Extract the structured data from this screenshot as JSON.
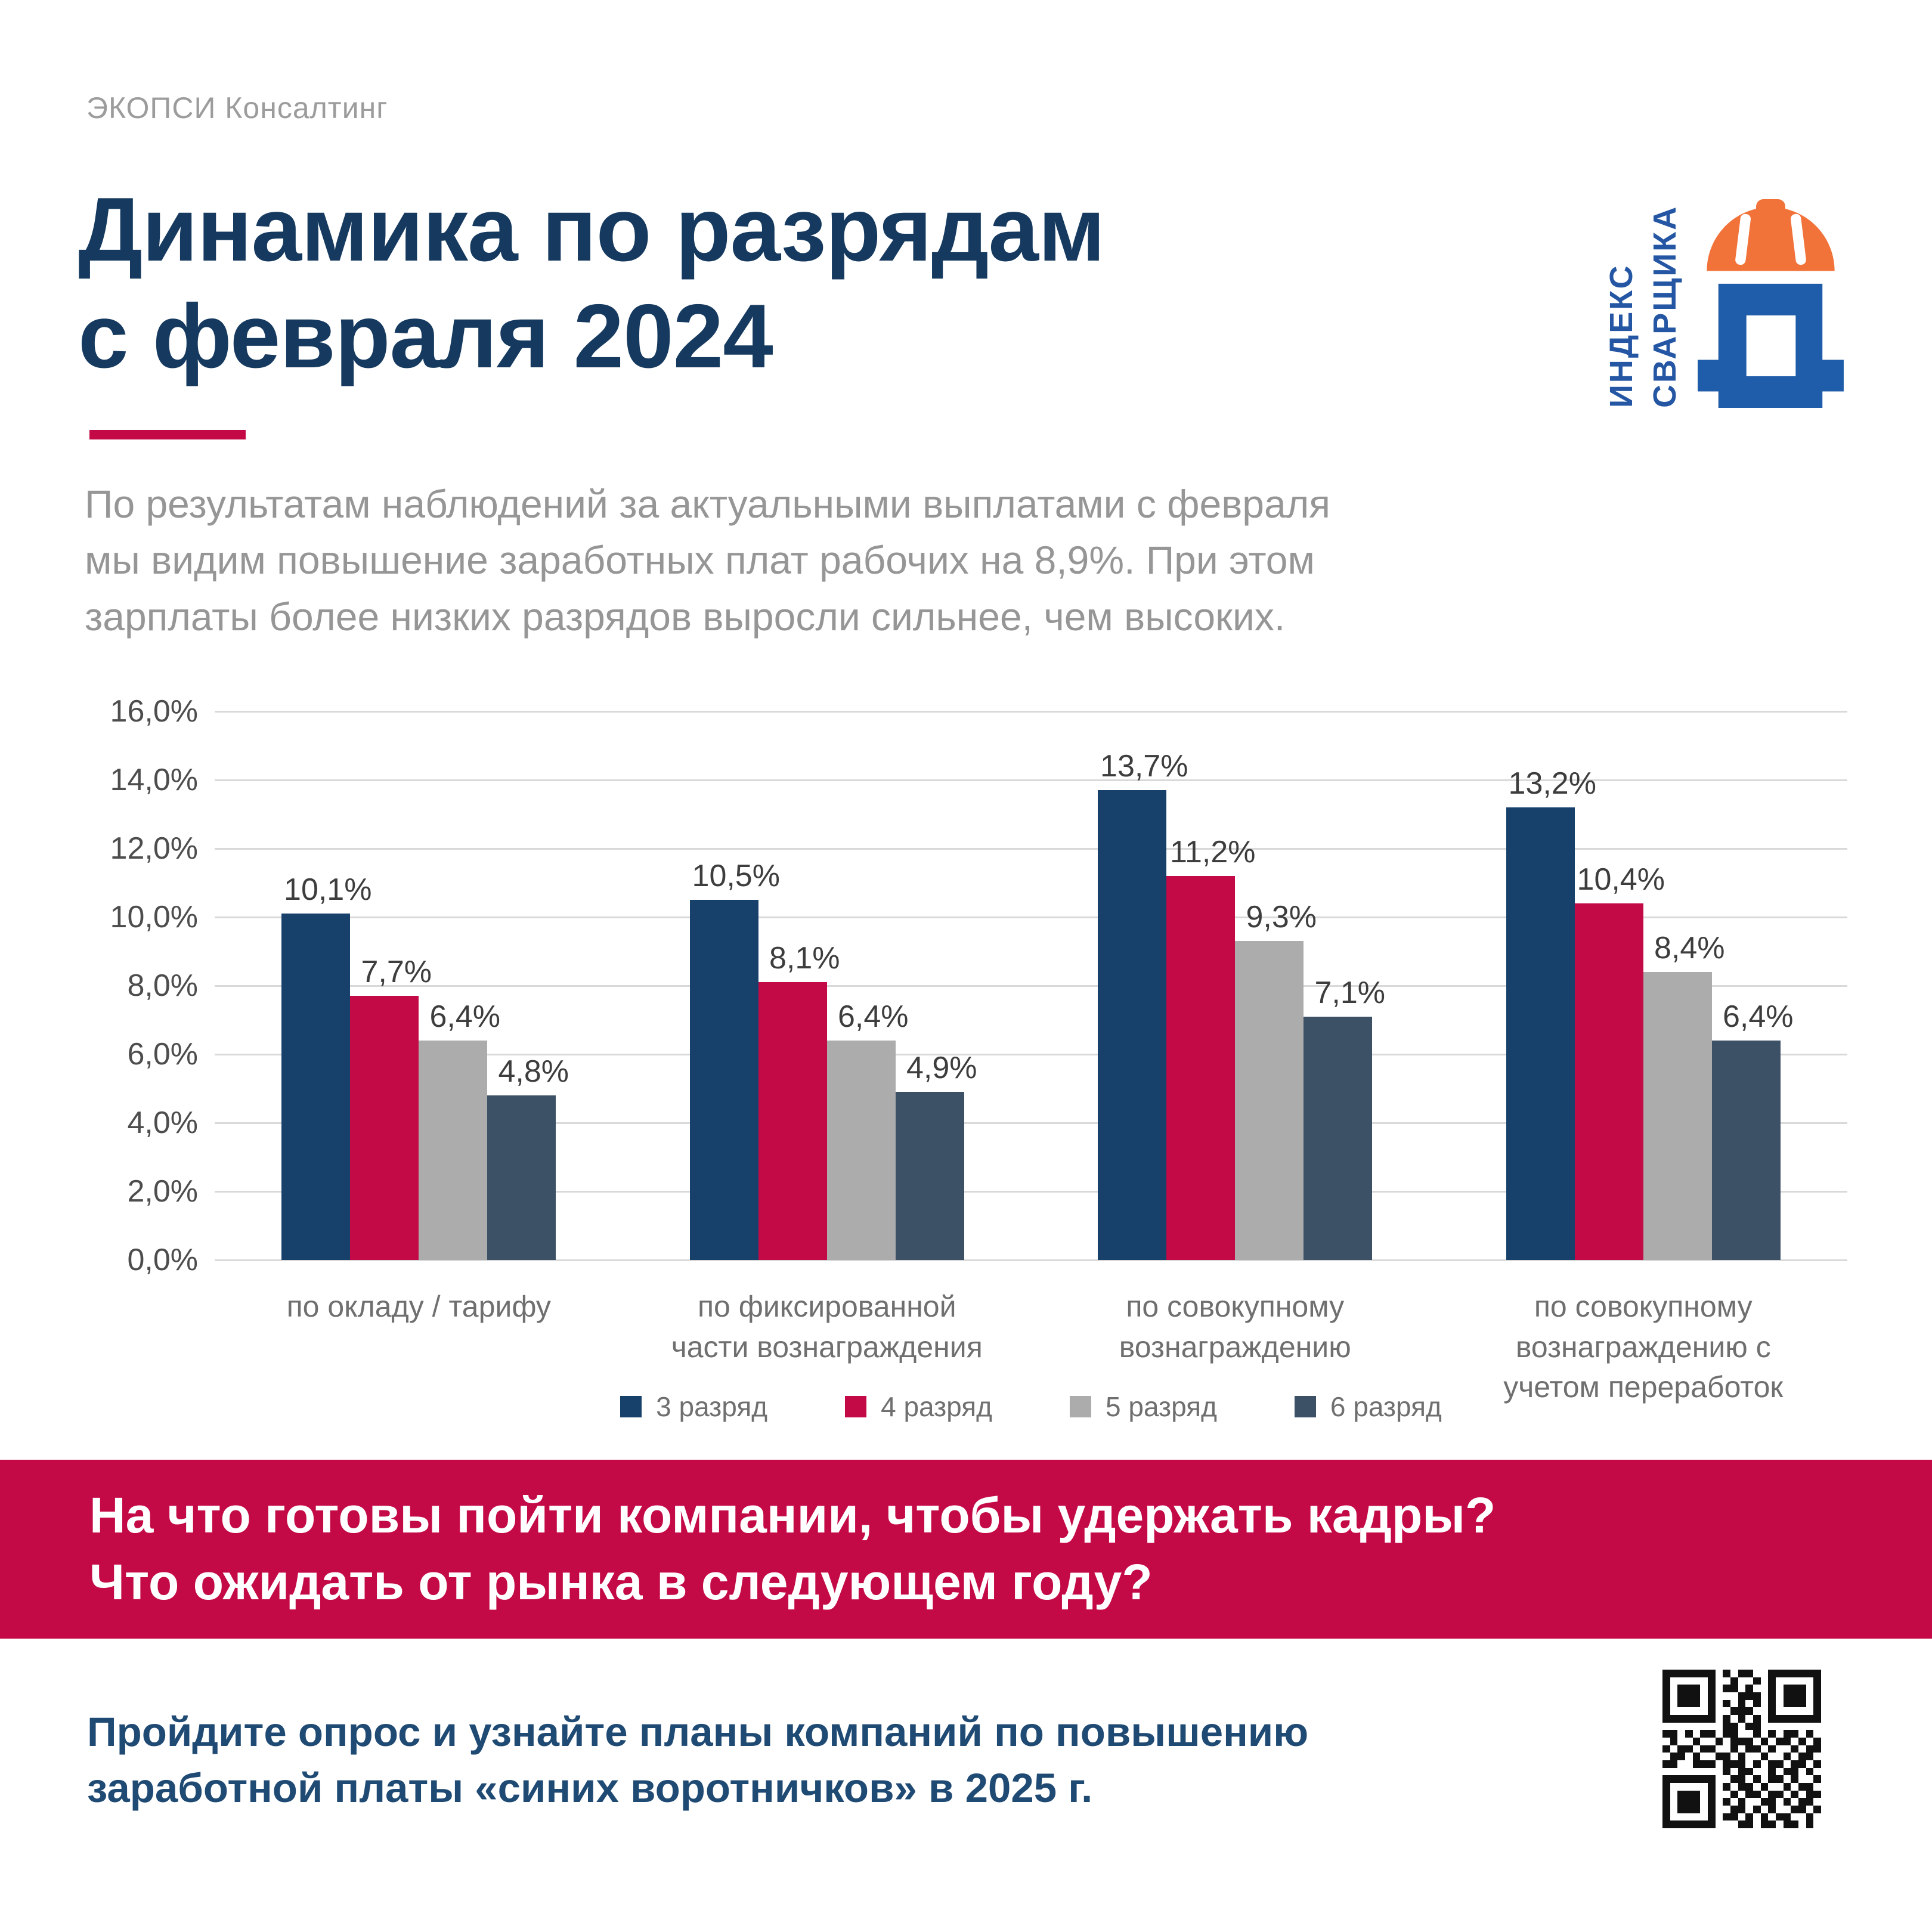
{
  "header": {
    "brand": "ЭКОПСИ Консалтинг",
    "title": "Динамика по разрядам\nс февраля 2024",
    "logo": {
      "line1": "ИНДЕКС",
      "line2": "СВАРЩИКА"
    }
  },
  "intro": {
    "text": "По результатам наблюдений за актуальными выплатами с февраля\nмы видим повышение заработных плат рабочих на 8,9%. При этом\nзарплаты более низких разрядов выросли сильнее, чем высоких."
  },
  "chart_data": {
    "type": "bar",
    "title": "",
    "xlabel": "",
    "ylabel": "",
    "categories": [
      "по окладу / тарифу",
      "по фиксированной\nчасти вознаграждения",
      "по совокупному\nвознаграждению",
      "по совокупному\nвознаграждению с\nучетом переработок"
    ],
    "series": [
      {
        "name": "3 разряд",
        "color": "#17406B",
        "values": [
          10.1,
          10.5,
          13.7,
          13.2
        ]
      },
      {
        "name": "4 разряд",
        "color": "#C40A46",
        "values": [
          7.7,
          8.1,
          11.2,
          10.4
        ]
      },
      {
        "name": "5 разряд",
        "color": "#ACACAC",
        "values": [
          6.4,
          6.4,
          9.3,
          8.4
        ]
      },
      {
        "name": "6 разряд",
        "color": "#3D5166",
        "values": [
          4.8,
          4.9,
          7.1,
          6.4
        ]
      }
    ],
    "ylim": [
      0,
      16
    ],
    "ytick_step": 2,
    "tick_label_format": "0,0%",
    "data_label_format": "0,0%",
    "grid": "horizontal",
    "legend_position": "bottom-center"
  },
  "banner": {
    "bg": "#C40A46",
    "text": "На что готовы пойти компании, чтобы удержать кадры?\nЧто ожидать от рынка в следующем году?"
  },
  "footer": {
    "text": "Пройдите опрос и узнайте планы компаний по повышению\nзаработной платы «синих воротничков» в 2025 г."
  },
  "qr": {
    "matrix": [
      "111111101011001111111",
      "100000100100101000001",
      "101110101101001011101",
      "101110100011101011101",
      "101110101010101011101",
      "100000100111001000001",
      "111111101010101111111",
      "000000001101100000000",
      "110101101100101011010",
      "010010010111010110101",
      "101101100101101001011",
      "011010011010010010110",
      "110011101110101101101",
      "000000001011001011010",
      "111111100110101101001",
      "100000101011010010110",
      "101110100101101101011",
      "101110101010011010110",
      "101110100110101001101",
      "100000101101010110010",
      "111111100011011011010"
    ]
  },
  "colors": {
    "title_navy": "#163A5F",
    "accent_red": "#C40A46",
    "body_gray": "#969696",
    "axis_gray": "#4D4D4D",
    "grid_gray": "#D9D9D9",
    "logo_blue": "#2456A3",
    "logo_orange": "#F2733A",
    "footer_navy": "#1F4A73"
  }
}
